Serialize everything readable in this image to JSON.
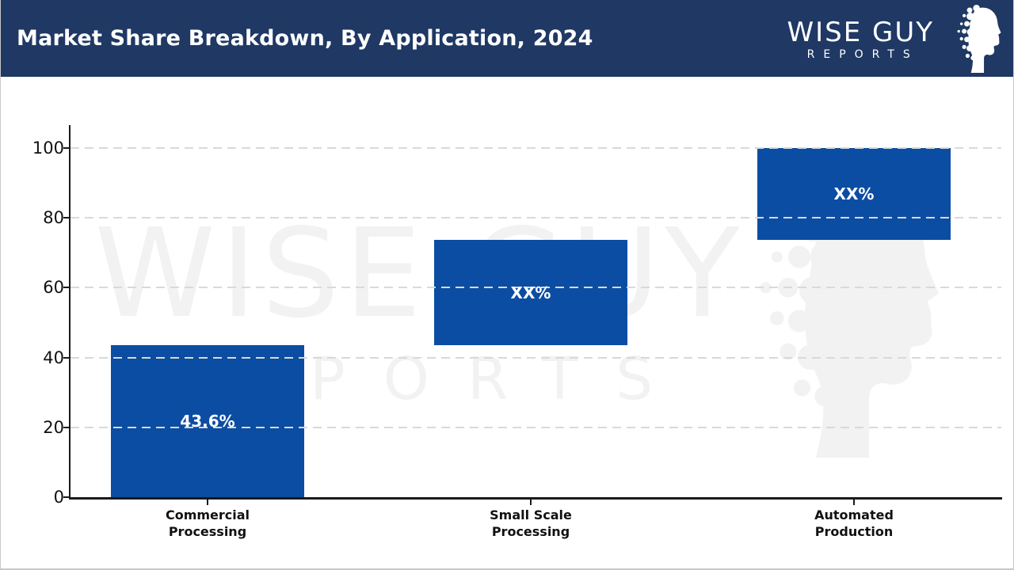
{
  "header": {
    "title": "Market Share Breakdown, By Application, 2024",
    "bg_color": "#1f3864",
    "logo": {
      "line1": "WISE GUY",
      "line2": "REPORTS"
    }
  },
  "watermark": {
    "line1": "WISE GUY",
    "line2": "REPORTS"
  },
  "chart_data": {
    "type": "bar",
    "subtype": "waterfall",
    "title": "Market Share Breakdown, By Application, 2024",
    "categories": [
      "Commercial Processing",
      "Small Scale Processing",
      "Automated Production"
    ],
    "category_lines": [
      [
        "Commercial",
        "Processing"
      ],
      [
        "Small Scale",
        "Processing"
      ],
      [
        "Automated",
        "Production"
      ]
    ],
    "segments": [
      {
        "category": "Commercial Processing",
        "start": 0,
        "end": 43.6,
        "value": 43.6,
        "label": "43.6%"
      },
      {
        "category": "Small Scale Processing",
        "start": 43.6,
        "end": 73.6,
        "value": 30.0,
        "label": "XX%"
      },
      {
        "category": "Automated Production",
        "start": 73.6,
        "end": 100,
        "value": 26.4,
        "label": "XX%"
      }
    ],
    "yticks": [
      0,
      20,
      40,
      60,
      80,
      100
    ],
    "ylim": [
      0,
      100
    ],
    "xlabel": "",
    "ylabel": "",
    "grid": "horizontal-dashed",
    "legend": "none",
    "bar_color": "#0b4da2",
    "bar_label_color": "#ffffff",
    "axis_color": "#1a1a1a",
    "grid_color": "#d9d9d9"
  }
}
